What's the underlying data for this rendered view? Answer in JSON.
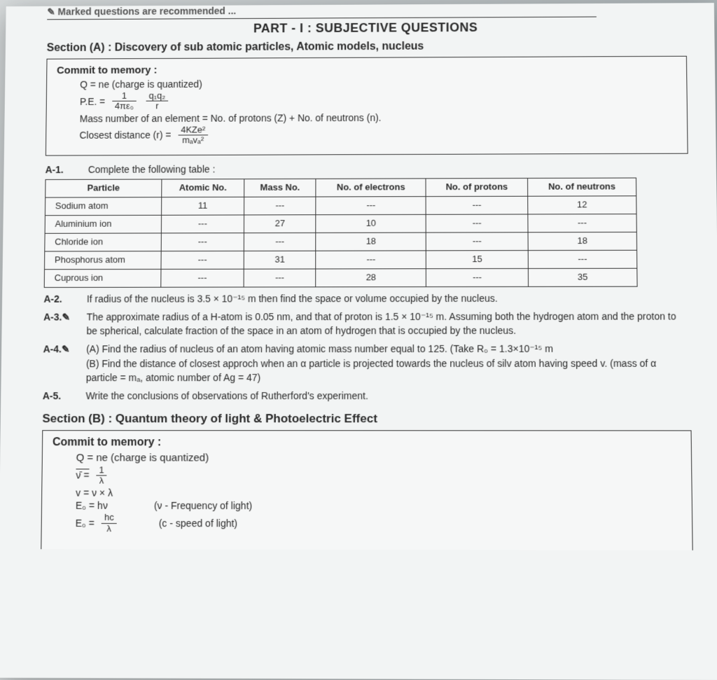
{
  "intro": "✎ Marked questions are recommended ...",
  "part_title": "PART - I : SUBJECTIVE QUESTIONS",
  "sectionA": {
    "title": "Section (A) : Discovery of sub atomic particles, Atomic models, nucleus",
    "memory": {
      "heading": "Commit to memory :",
      "q_line": "Q = ne (charge is quantized)",
      "pe_label": "P.E. =",
      "pe_frac1_num": "1",
      "pe_frac1_den": "4πε₀",
      "pe_frac2_num": "q₁q₂",
      "pe_frac2_den": "r",
      "mass_line": "Mass number of an element = No. of protons (Z) + No. of neutrons (n).",
      "closest_label": "Closest distance (r) =",
      "closest_num": "4KZe²",
      "closest_den": "mₐvₐ²"
    },
    "A1": {
      "label": "A-1.",
      "prompt": "Complete the following table :",
      "headers": [
        "Particle",
        "Atomic No.",
        "Mass No.",
        "No. of electrons",
        "No. of protons",
        "No. of neutrons"
      ],
      "rows": [
        [
          "Sodium atom",
          "11",
          "---",
          "---",
          "---",
          "12"
        ],
        [
          "Aluminium ion",
          "---",
          "27",
          "10",
          "---",
          "---"
        ],
        [
          "Chloride ion",
          "---",
          "---",
          "18",
          "---",
          "18"
        ],
        [
          "Phosphorus atom",
          "---",
          "31",
          "---",
          "15",
          "---"
        ],
        [
          "Cuprous ion",
          "---",
          "---",
          "28",
          "---",
          "35"
        ]
      ]
    },
    "A2": {
      "label": "A-2.",
      "text": "If radius of the nucleus is 3.5 × 10⁻¹⁵ m then find the space or volume occupied by the nucleus."
    },
    "A3": {
      "label": "A-3.✎",
      "text": "The approximate radius of a H-atom is 0.05 nm, and that of proton is 1.5 × 10⁻¹⁵ m. Assuming both the hydrogen atom and the proton to be spherical, calculate fraction of the space in an atom of hydrogen that is occupied by the nucleus."
    },
    "A4": {
      "label": "A-4.✎",
      "textA": "(A) Find the radius of nucleus of an atom having atomic mass number equal to 125. (Take R₀ = 1.3×10⁻¹⁵ m",
      "textB": "(B) Find the distance of closest approch when an α particle is projected towards the nucleus of silv atom having speed v. (mass of α particle = mₐ, atomic number of Ag = 47)"
    },
    "A5": {
      "label": "A-5.",
      "text": "Write the conclusions of observations of Rutherford's experiment."
    }
  },
  "sectionB": {
    "title": "Section (B) : Quantum theory of light & Photoelectric Effect",
    "memory": {
      "heading": "Commit to memory :",
      "q_line": "Q = ne (charge is quantized)",
      "nubar_lhs": "ν̄ =",
      "nubar_num": "1",
      "nubar_den": "λ",
      "v_line": "v = ν × λ",
      "e0_1_lhs": "E₀ = hν",
      "e0_1_note": "(ν - Frequency of light)",
      "e0_2_lhs": "E₀ =",
      "e0_2_num": "hc",
      "e0_2_den": "λ",
      "e0_2_note": "(c - speed of light)"
    }
  }
}
